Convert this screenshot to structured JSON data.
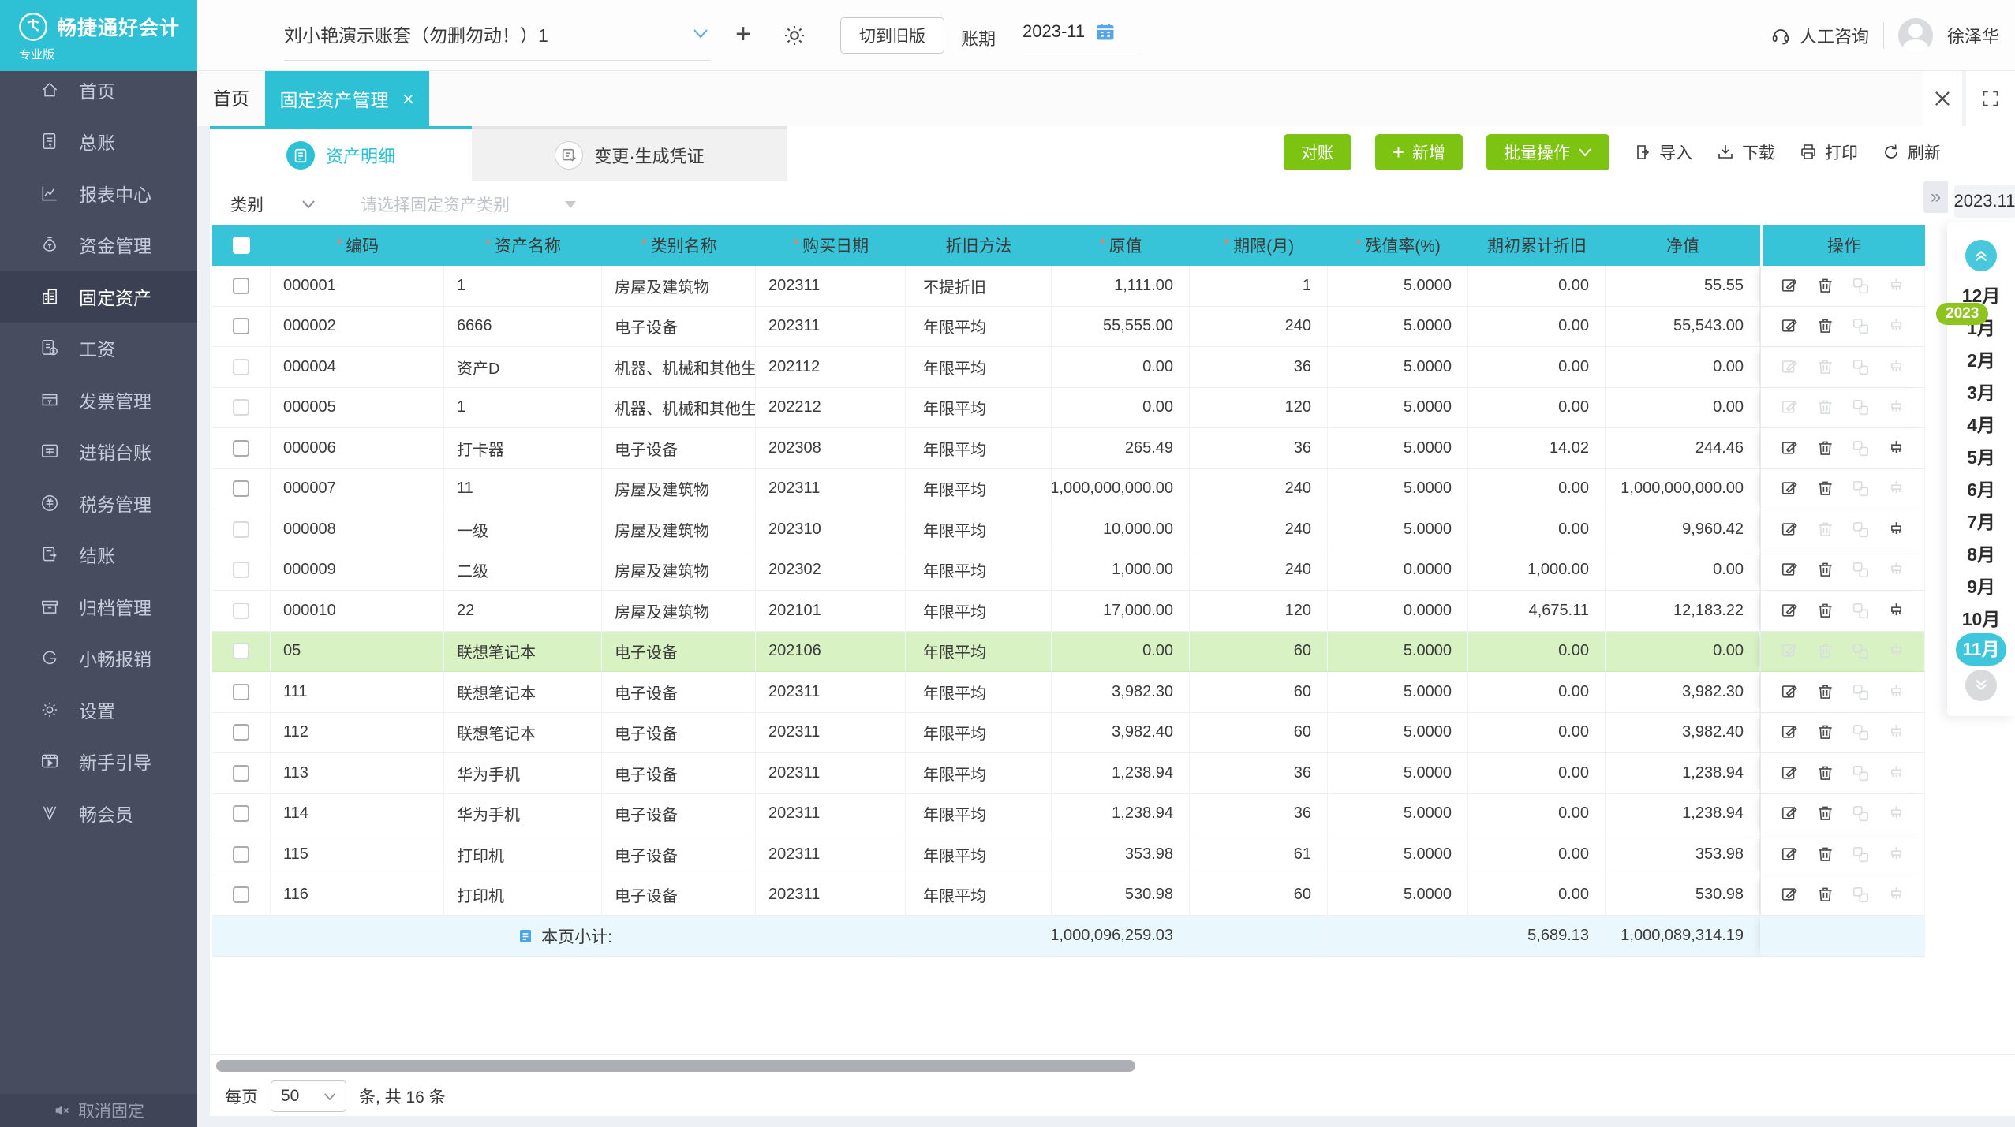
{
  "brand": {
    "name": "畅捷通好会计",
    "edition": "专业版"
  },
  "topbar": {
    "account_set": "刘小艳演示账套（勿删勿动！）1",
    "switch_old_label": "切到旧版",
    "period_label": "账期",
    "period_value": "2023-11",
    "support_label": "人工咨询",
    "username": "徐泽华"
  },
  "tabs": {
    "home": "首页",
    "active": "固定资产管理"
  },
  "subtabs": {
    "active": "资产明细",
    "inactive": "变更·生成凭证"
  },
  "toolbar": {
    "buttons": [
      "对账",
      "新增",
      "批量操作"
    ],
    "links": [
      "导入",
      "下载",
      "打印",
      "刷新"
    ]
  },
  "filter": {
    "category_label": "类别",
    "category_placeholder": "请选择固定资产类别"
  },
  "table": {
    "headers": [
      {
        "label": "编码",
        "required": true
      },
      {
        "label": "资产名称",
        "required": true
      },
      {
        "label": "类别名称",
        "required": true
      },
      {
        "label": "购买日期",
        "required": true
      },
      {
        "label": "折旧方法",
        "required": false
      },
      {
        "label": "原值",
        "required": true
      },
      {
        "label": "期限(月)",
        "required": true
      },
      {
        "label": "残值率(%)",
        "required": true
      },
      {
        "label": "期初累计折旧",
        "required": false
      },
      {
        "label": "净值",
        "required": false
      },
      {
        "label": "操作",
        "required": false
      }
    ],
    "rows": [
      {
        "code": "000001",
        "name": "1",
        "category": "房屋及建筑物",
        "date": "202311",
        "method": "不提折旧",
        "original": "1,111.00",
        "months": "1",
        "rate": "5.0000",
        "accum": "0.00",
        "net": "55.55",
        "checkbox_enabled": true,
        "highlight": false,
        "ops": [
          1,
          1,
          0,
          0
        ]
      },
      {
        "code": "000002",
        "name": "6666",
        "category": "电子设备",
        "date": "202311",
        "method": "年限平均",
        "original": "55,555.00",
        "months": "240",
        "rate": "5.0000",
        "accum": "0.00",
        "net": "55,543.00",
        "checkbox_enabled": true,
        "highlight": false,
        "ops": [
          1,
          1,
          0,
          0
        ]
      },
      {
        "code": "000004",
        "name": "资产D",
        "category": "机器、机械和其他生...",
        "date": "202112",
        "method": "年限平均",
        "original": "0.00",
        "months": "36",
        "rate": "5.0000",
        "accum": "0.00",
        "net": "0.00",
        "checkbox_enabled": false,
        "highlight": false,
        "ops": [
          0,
          0,
          0,
          0
        ]
      },
      {
        "code": "000005",
        "name": "1",
        "category": "机器、机械和其他生...",
        "date": "202212",
        "method": "年限平均",
        "original": "0.00",
        "months": "120",
        "rate": "5.0000",
        "accum": "0.00",
        "net": "0.00",
        "checkbox_enabled": false,
        "highlight": false,
        "ops": [
          0,
          0,
          0,
          0
        ]
      },
      {
        "code": "000006",
        "name": "打卡器",
        "category": "电子设备",
        "date": "202308",
        "method": "年限平均",
        "original": "265.49",
        "months": "36",
        "rate": "5.0000",
        "accum": "14.02",
        "net": "244.46",
        "checkbox_enabled": true,
        "highlight": false,
        "ops": [
          1,
          1,
          0,
          1
        ]
      },
      {
        "code": "000007",
        "name": "11",
        "category": "房屋及建筑物",
        "date": "202311",
        "method": "年限平均",
        "original": "1,000,000,000.00",
        "months": "240",
        "rate": "5.0000",
        "accum": "0.00",
        "net": "1,000,000,000.00",
        "checkbox_enabled": true,
        "highlight": false,
        "ops": [
          1,
          1,
          0,
          0
        ]
      },
      {
        "code": "000008",
        "name": "一级",
        "category": "房屋及建筑物",
        "date": "202310",
        "method": "年限平均",
        "original": "10,000.00",
        "months": "240",
        "rate": "5.0000",
        "accum": "0.00",
        "net": "9,960.42",
        "checkbox_enabled": false,
        "highlight": false,
        "ops": [
          1,
          0,
          0,
          1
        ]
      },
      {
        "code": "000009",
        "name": "二级",
        "category": "房屋及建筑物",
        "date": "202302",
        "method": "年限平均",
        "original": "1,000.00",
        "months": "240",
        "rate": "0.0000",
        "accum": "1,000.00",
        "net": "0.00",
        "checkbox_enabled": false,
        "highlight": false,
        "ops": [
          1,
          1,
          0,
          0
        ]
      },
      {
        "code": "000010",
        "name": "22",
        "category": "房屋及建筑物",
        "date": "202101",
        "method": "年限平均",
        "original": "17,000.00",
        "months": "120",
        "rate": "0.0000",
        "accum": "4,675.11",
        "net": "12,183.22",
        "checkbox_enabled": false,
        "highlight": false,
        "ops": [
          1,
          1,
          0,
          1
        ]
      },
      {
        "code": "05",
        "name": "联想笔记本",
        "category": "电子设备",
        "date": "202106",
        "method": "年限平均",
        "original": "0.00",
        "months": "60",
        "rate": "5.0000",
        "accum": "0.00",
        "net": "0.00",
        "checkbox_enabled": false,
        "highlight": true,
        "ops": [
          0,
          0,
          0,
          0
        ]
      },
      {
        "code": "111",
        "name": "联想笔记本",
        "category": "电子设备",
        "date": "202311",
        "method": "年限平均",
        "original": "3,982.30",
        "months": "60",
        "rate": "5.0000",
        "accum": "0.00",
        "net": "3,982.30",
        "checkbox_enabled": true,
        "highlight": false,
        "ops": [
          1,
          1,
          0,
          0
        ]
      },
      {
        "code": "112",
        "name": "联想笔记本",
        "category": "电子设备",
        "date": "202311",
        "method": "年限平均",
        "original": "3,982.40",
        "months": "60",
        "rate": "5.0000",
        "accum": "0.00",
        "net": "3,982.40",
        "checkbox_enabled": true,
        "highlight": false,
        "ops": [
          1,
          1,
          0,
          0
        ]
      },
      {
        "code": "113",
        "name": "华为手机",
        "category": "电子设备",
        "date": "202311",
        "method": "年限平均",
        "original": "1,238.94",
        "months": "36",
        "rate": "5.0000",
        "accum": "0.00",
        "net": "1,238.94",
        "checkbox_enabled": true,
        "highlight": false,
        "ops": [
          1,
          1,
          0,
          0
        ]
      },
      {
        "code": "114",
        "name": "华为手机",
        "category": "电子设备",
        "date": "202311",
        "method": "年限平均",
        "original": "1,238.94",
        "months": "36",
        "rate": "5.0000",
        "accum": "0.00",
        "net": "1,238.94",
        "checkbox_enabled": true,
        "highlight": false,
        "ops": [
          1,
          1,
          0,
          0
        ]
      },
      {
        "code": "115",
        "name": "打印机",
        "category": "电子设备",
        "date": "202311",
        "method": "年限平均",
        "original": "353.98",
        "months": "61",
        "rate": "5.0000",
        "accum": "0.00",
        "net": "353.98",
        "checkbox_enabled": true,
        "highlight": false,
        "ops": [
          1,
          1,
          0,
          0
        ]
      },
      {
        "code": "116",
        "name": "打印机",
        "category": "电子设备",
        "date": "202311",
        "method": "年限平均",
        "original": "530.98",
        "months": "60",
        "rate": "5.0000",
        "accum": "0.00",
        "net": "530.98",
        "checkbox_enabled": true,
        "highlight": false,
        "ops": [
          1,
          1,
          0,
          0
        ]
      }
    ],
    "summary": {
      "label": "本页小计:",
      "original": "1,000,096,259.03",
      "accum": "5,689.13",
      "net": "1,000,089,314.19"
    }
  },
  "pagination": {
    "per_page_label": "每页",
    "per_page_value": "50",
    "suffix": "条, 共 16 条"
  },
  "calendar": {
    "current": "2023.11",
    "top_month": "12月",
    "year_badge": "2023",
    "months": [
      "1月",
      "2月",
      "3月",
      "4月",
      "5月",
      "6月",
      "7月",
      "8月",
      "9月",
      "10月",
      "11月"
    ],
    "selected": "11月"
  },
  "sidebar": {
    "items": [
      {
        "icon": "home-icon",
        "label": "首页",
        "active": false
      },
      {
        "icon": "ledger-icon",
        "label": "总账",
        "active": false
      },
      {
        "icon": "report-icon",
        "label": "报表中心",
        "active": false
      },
      {
        "icon": "funds-icon",
        "label": "资金管理",
        "active": false
      },
      {
        "icon": "building-icon",
        "label": "固定资产",
        "active": true
      },
      {
        "icon": "salary-icon",
        "label": "工资",
        "active": false
      },
      {
        "icon": "invoice-icon",
        "label": "发票管理",
        "active": false
      },
      {
        "icon": "trade-ledger-icon",
        "label": "进销台账",
        "active": false
      },
      {
        "icon": "tax-icon",
        "label": "税务管理",
        "active": false
      },
      {
        "icon": "closing-icon",
        "label": "结账",
        "active": false
      },
      {
        "icon": "archive-icon",
        "label": "归档管理",
        "active": false
      },
      {
        "icon": "reimburse-icon",
        "label": "小畅报销",
        "active": false
      },
      {
        "icon": "gear-icon",
        "label": "设置",
        "active": false
      },
      {
        "icon": "guide-icon",
        "label": "新手引导",
        "active": false
      },
      {
        "icon": "member-icon",
        "label": "畅会员",
        "active": false
      }
    ],
    "footer_label": "取消固定"
  },
  "colors": {
    "brand_cyan": "#2EC1D5",
    "table_header": "#38C4D8",
    "button_green": "#7DC412",
    "highlight_row": "#D8F2C4",
    "summary_row": "#EAF7FC",
    "year_badge": "#8FC31F",
    "required_star": "#FF7466"
  }
}
